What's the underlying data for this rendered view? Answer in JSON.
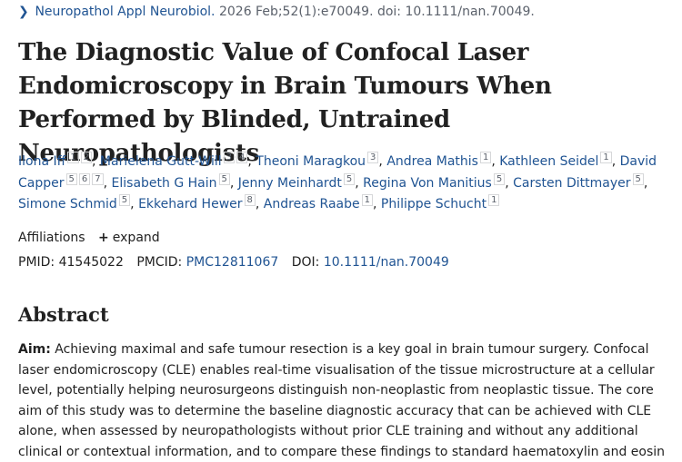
{
  "citation": {
    "journal": "Neuropathol Appl Neurobiol.",
    "details": "2026 Feb;52(1):e70049. doi: 10.1111/nan.70049."
  },
  "article": {
    "title": "The Diagnostic Value of Confocal Laser Endomicroscopy in Brain Tumours When Performed by Blinded, Untrained Neuropathologists"
  },
  "authors": [
    {
      "name": "Ilona Iff",
      "affils": [
        "1",
        "2"
      ]
    },
    {
      "name": "Marielena Gutt-Will",
      "affils": [
        "3",
        "4"
      ]
    },
    {
      "name": "Theoni Maragkou",
      "affils": [
        "3"
      ]
    },
    {
      "name": "Andrea Mathis",
      "affils": [
        "1"
      ]
    },
    {
      "name": "Kathleen Seidel",
      "affils": [
        "1"
      ]
    },
    {
      "name": "David Capper",
      "affils": [
        "5",
        "6",
        "7"
      ]
    },
    {
      "name": "Elisabeth G Hain",
      "affils": [
        "5"
      ]
    },
    {
      "name": "Jenny Meinhardt",
      "affils": [
        "5"
      ]
    },
    {
      "name": "Regina Von Manitius",
      "affils": [
        "5"
      ]
    },
    {
      "name": "Carsten Dittmayer",
      "affils": [
        "5"
      ]
    },
    {
      "name": "Simone Schmid",
      "affils": [
        "5"
      ]
    },
    {
      "name": "Ekkehard Hewer",
      "affils": [
        "8"
      ]
    },
    {
      "name": "Andreas Raabe",
      "affils": [
        "1"
      ]
    },
    {
      "name": "Philippe Schucht",
      "affils": [
        "1"
      ]
    }
  ],
  "affiliations": {
    "label": "Affiliations",
    "expand_icon": "plus-icon",
    "expand_label": "expand"
  },
  "ids": {
    "pmid_label": "PMID:",
    "pmid": "41545022",
    "pmcid_label": "PMCID:",
    "pmcid": "PMC12811067",
    "doi_label": "DOI:",
    "doi": "10.1111/nan.70049"
  },
  "abstract": {
    "heading": "Abstract",
    "aim_label": "Aim:",
    "aim_text": "Achieving maximal and safe tumour resection is a key goal in brain tumour surgery. Confocal laser endomicroscopy (CLE) enables real-time visualisation of the tissue microstructure at a cellular level, potentially helping neurosurgeons distinguish non-neoplastic from neoplastic tissue. The core aim of this study was to determine the baseline diagnostic accuracy that can be achieved with CLE alone, when assessed by neuropathologists without prior CLE training and without any additional clinical or contextual information, and to compare these findings to standard haematoxylin and eosin"
  },
  "colors": {
    "link": "#205493",
    "text": "#212121",
    "muted": "#5b616b"
  }
}
